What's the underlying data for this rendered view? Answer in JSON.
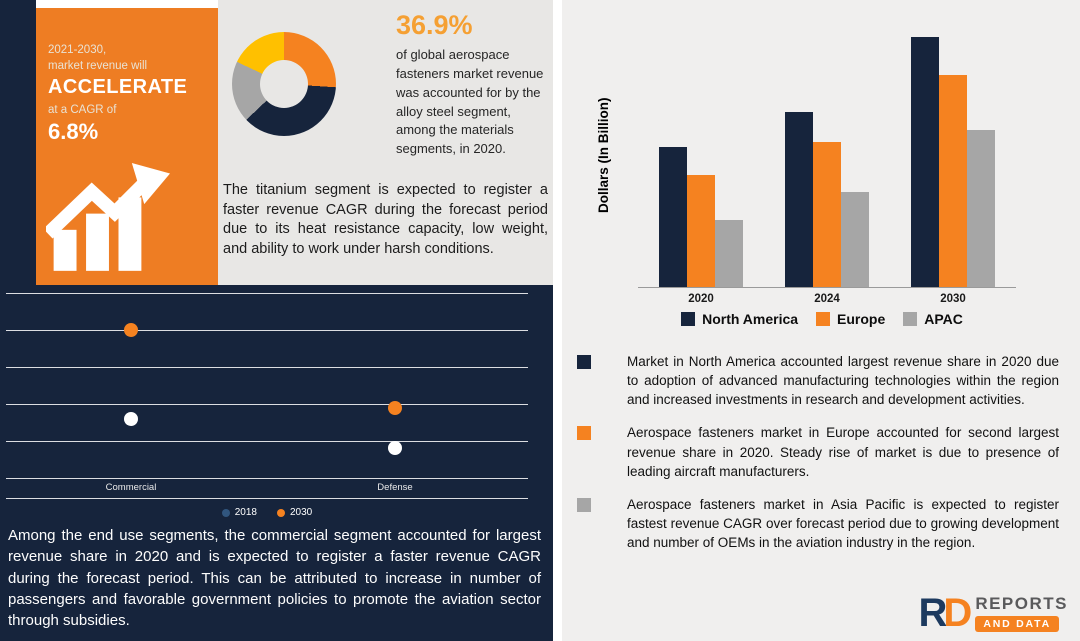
{
  "brand_colors": {
    "navy": "#16243c",
    "orange": "#f58220",
    "box_orange": "#ee7d23",
    "yellow": "#ffc000",
    "gray": "#a6a6a6",
    "light_gray_bg": "#e8e7e5",
    "panel_bg": "#f0efee",
    "pct_orange": "#f5a033"
  },
  "accel_box": {
    "period": "2021-2030,",
    "line2": "market revenue will",
    "emphasis": "ACCELERATE",
    "line4": "at a CAGR of",
    "cagr": "6.8%"
  },
  "alloy": {
    "pct": "36.9%",
    "text": "of global aerospace fasteners market revenue was accounted for by the alloy steel segment, among the materials segments, in 2020.",
    "titanium": "The titanium segment is expected to register a faster revenue CAGR during the forecast period due to its heat resistance capacity, low weight, and ability to work under harsh conditions."
  },
  "end_use": {
    "note": "Among the end use segments, the commercial segment accounted for largest revenue share in 2020 and is expected to register a faster revenue CAGR during the forecast period. This can be attributed to increase in number of passengers and favorable government policies to promote the aviation sector through subsidies."
  },
  "region": {
    "bullets": [
      {
        "color": "#16243c",
        "text": "Market in North America accounted largest revenue share in 2020 due to adoption of advanced manufacturing technologies within the region and increased investments in research and development activities."
      },
      {
        "color": "#f58220",
        "text": "Aerospace fasteners market in Europe accounted for second largest revenue share in 2020.  Steady rise of market is due to presence of leading aircraft manufacturers."
      },
      {
        "color": "#a6a6a6",
        "text": "Aerospace fasteners market in Asia Pacific is expected to register fastest revenue CAGR over forecast period due to growing development and number of OEMs in the aviation industry in the region."
      }
    ]
  },
  "logo": {
    "mark_r": "R",
    "mark_d": "D",
    "top": "REPORTS",
    "bottom": "AND DATA"
  },
  "chart_data": [
    {
      "type": "pie",
      "slices": [
        {
          "label": "unlabeled-orange",
          "value": 26,
          "color": "#f58220"
        },
        {
          "label": "alloy steel",
          "value": 36.9,
          "color": "#16243c"
        },
        {
          "label": "unlabeled-gray",
          "value": 19.1,
          "color": "#a6a6a6"
        },
        {
          "label": "unlabeled-yellow",
          "value": 18,
          "color": "#ffc000"
        }
      ],
      "donut_hole": 0.46
    },
    {
      "type": "scatter",
      "categories": [
        "Commercial",
        "Defense"
      ],
      "category_x": [
        0.24,
        0.745
      ],
      "series": [
        {
          "name": "2018",
          "color": "#ffffff",
          "values": [
            1.6,
            0.8
          ]
        },
        {
          "name": "2030",
          "color": "#f58220",
          "values": [
            4.0,
            1.9
          ]
        }
      ],
      "ylim": [
        0,
        5
      ],
      "gridlines": 6,
      "legend_position": "bottom",
      "legend_dot_colors": [
        "#31567f",
        "#f58220"
      ]
    },
    {
      "type": "bar",
      "categories": [
        "2020",
        "2024",
        "2030"
      ],
      "series": [
        {
          "name": "North America",
          "color": "#16243c",
          "values": [
            5.6,
            7.0,
            10.0
          ]
        },
        {
          "name": "Europe",
          "color": "#f58220",
          "values": [
            4.5,
            5.8,
            8.5
          ]
        },
        {
          "name": "APAC",
          "color": "#a6a6a6",
          "values": [
            2.7,
            3.8,
            6.3
          ]
        }
      ],
      "ylabel": "Dollars  (In Billion)",
      "xlabel": "",
      "ylim": [
        0,
        10.5
      ],
      "grid": false,
      "legend_position": "bottom"
    }
  ]
}
